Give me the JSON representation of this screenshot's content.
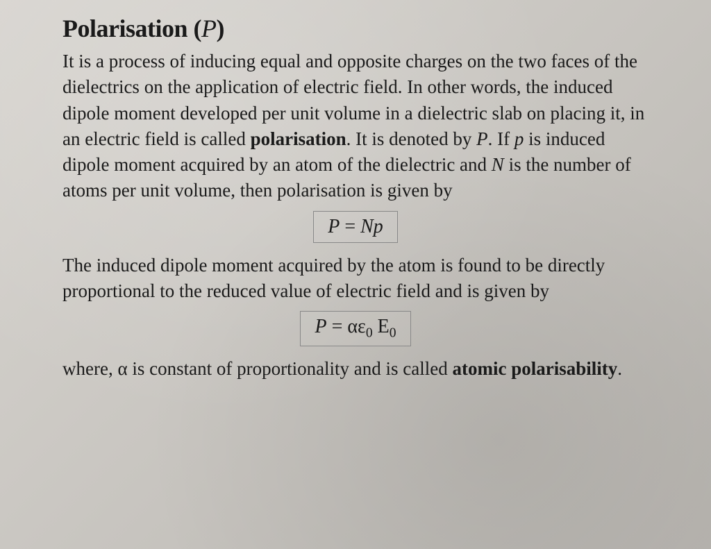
{
  "document": {
    "background_color": "#cccac4",
    "text_color": "#1a1a1a",
    "heading": {
      "prefix": "Polarisation ",
      "symbol_open": "(",
      "symbol": "P",
      "symbol_close": ")",
      "font_size": 36,
      "font_weight": "bold"
    },
    "paragraph1": {
      "text_parts": [
        "It is a process of inducing equal and opposite charges on the two faces of the dielectrics on the application of electric field. In other words, the induced dipole moment developed per unit volume in a dielectric slab on placing it, in an electric field is called ",
        "polarisation",
        ". It is denoted by ",
        "P",
        ". If ",
        "p",
        " is induced dipole moment acquired by an atom of the dielectric and ",
        "N",
        " is the number of atoms per unit volume, then polarisation is given by"
      ],
      "font_size": 27
    },
    "formula1": {
      "lhs": "P",
      "eq": " = ",
      "rhs_N": "N",
      "rhs_p": "p",
      "border_color": "#888888",
      "font_size": 28
    },
    "paragraph2": {
      "text": "The induced dipole moment acquired by the atom is found to be directly proportional to the reduced value of electric field and is given by",
      "font_size": 27
    },
    "formula2": {
      "lhs": "P",
      "eq": " = ",
      "alpha": "α",
      "eps": "ε",
      "sub0a": "0",
      "space": " ",
      "E": "E",
      "sub0b": "0",
      "border_color": "#888888",
      "font_size": 28
    },
    "paragraph3": {
      "text_parts": [
        "where, α is constant of proportionality and is called ",
        "atomic polarisability",
        "."
      ],
      "font_size": 27
    }
  }
}
